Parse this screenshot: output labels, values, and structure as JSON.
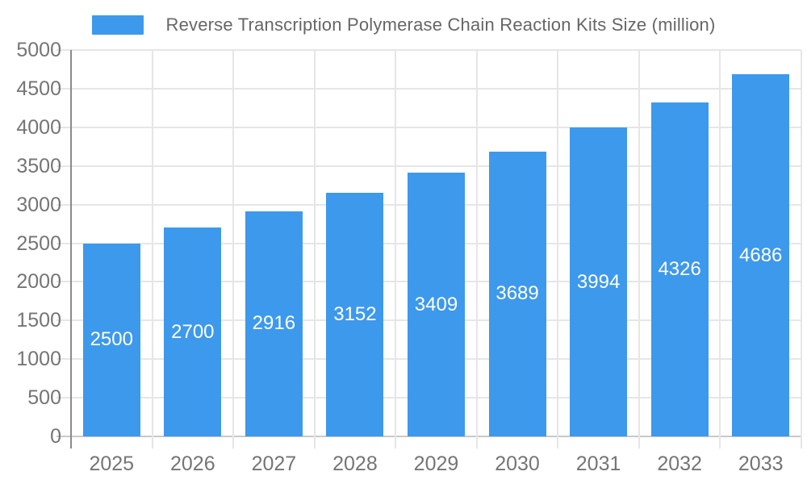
{
  "legend": {
    "label": "Reverse Transcription Polymerase Chain Reaction Kits Size (million)",
    "swatch_color": "#3D99EC"
  },
  "chart_data": {
    "type": "bar",
    "title": "Reverse Transcription Polymerase Chain Reaction Kits Size (million)",
    "series_name": "Reverse Transcription Polymerase Chain Reaction Kits Size (million)",
    "categories": [
      "2025",
      "2026",
      "2027",
      "2028",
      "2029",
      "2030",
      "2031",
      "2032",
      "2033"
    ],
    "values": [
      2500,
      2700,
      2916,
      3152,
      3409,
      3689,
      3994,
      4326,
      4686
    ],
    "value_labels_shown": [
      "2500",
      "2700",
      "2916",
      "3152",
      "3409",
      "3689",
      "3994",
      "4326",
      "4686"
    ],
    "xlabel": "",
    "ylabel": "",
    "ylim": [
      0,
      5000
    ],
    "ytick_step": 500,
    "yticks": [
      0,
      500,
      1000,
      1500,
      2000,
      2500,
      3000,
      3500,
      4000,
      4500,
      5000
    ],
    "ytick_labels": [
      "0",
      "500",
      "1000",
      "1500",
      "2000",
      "2500",
      "3000",
      "3500",
      "4000",
      "4500",
      "5000"
    ],
    "grid": true,
    "legend_position": "top-center",
    "value_label_position": "inside-center",
    "colors": {
      "bar": "#3D99EC",
      "bar_value_text": "#ffffff",
      "axis_tick_text": "#757575",
      "legend_text": "#666666",
      "gridline": "#e6e6e6",
      "baseline": "#c9c9c9",
      "axis_line": "#8a8a8a"
    }
  }
}
